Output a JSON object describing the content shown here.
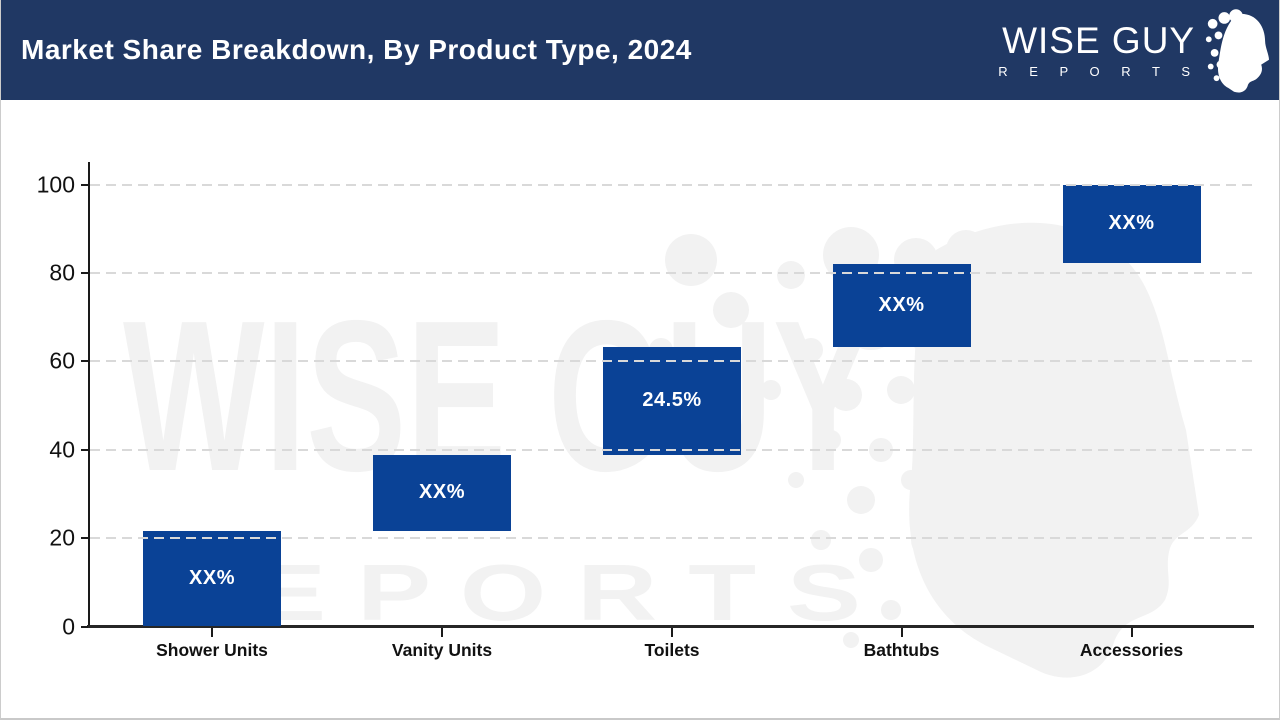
{
  "header": {
    "title": "Market Share Breakdown, By Product Type, 2024",
    "logo": {
      "line1": "WISE GUY",
      "line2": "R E P O R T S"
    }
  },
  "watermark": {
    "line1": "WISE GUY",
    "line2": "R E P O R T S"
  },
  "chart_data": {
    "type": "bar",
    "subtype": "waterfall",
    "title": "Market Share Breakdown, By Product Type, 2024",
    "categories": [
      "Shower Units",
      "Vanity Units",
      "Toilets",
      "Bathtubs",
      "Accessories"
    ],
    "segments": [
      {
        "category": "Shower Units",
        "start": 0,
        "end": 21.5,
        "label": "XX%"
      },
      {
        "category": "Vanity Units",
        "start": 21.7,
        "end": 38.8,
        "label": "XX%"
      },
      {
        "category": "Toilets",
        "start": 38.8,
        "end": 63.3,
        "label": "24.5%",
        "value": 24.5
      },
      {
        "category": "Bathtubs",
        "start": 63.3,
        "end": 82.0,
        "label": "XX%"
      },
      {
        "category": "Accessories",
        "start": 82.3,
        "end": 100,
        "label": "XX%"
      }
    ],
    "y_ticks": [
      0,
      20,
      40,
      60,
      80,
      100
    ],
    "ylim": [
      0,
      105
    ],
    "xlabel": "",
    "ylabel": "",
    "grid": "horizontal-dashed",
    "legend": "none",
    "bar_color": "#0a4296",
    "bar_label_color": "#ffffff",
    "axis_color": "#1a1a1a",
    "gridline_color": "#d9d9d9",
    "header_color": "#203864",
    "watermark_color": "#f2f2f2"
  }
}
